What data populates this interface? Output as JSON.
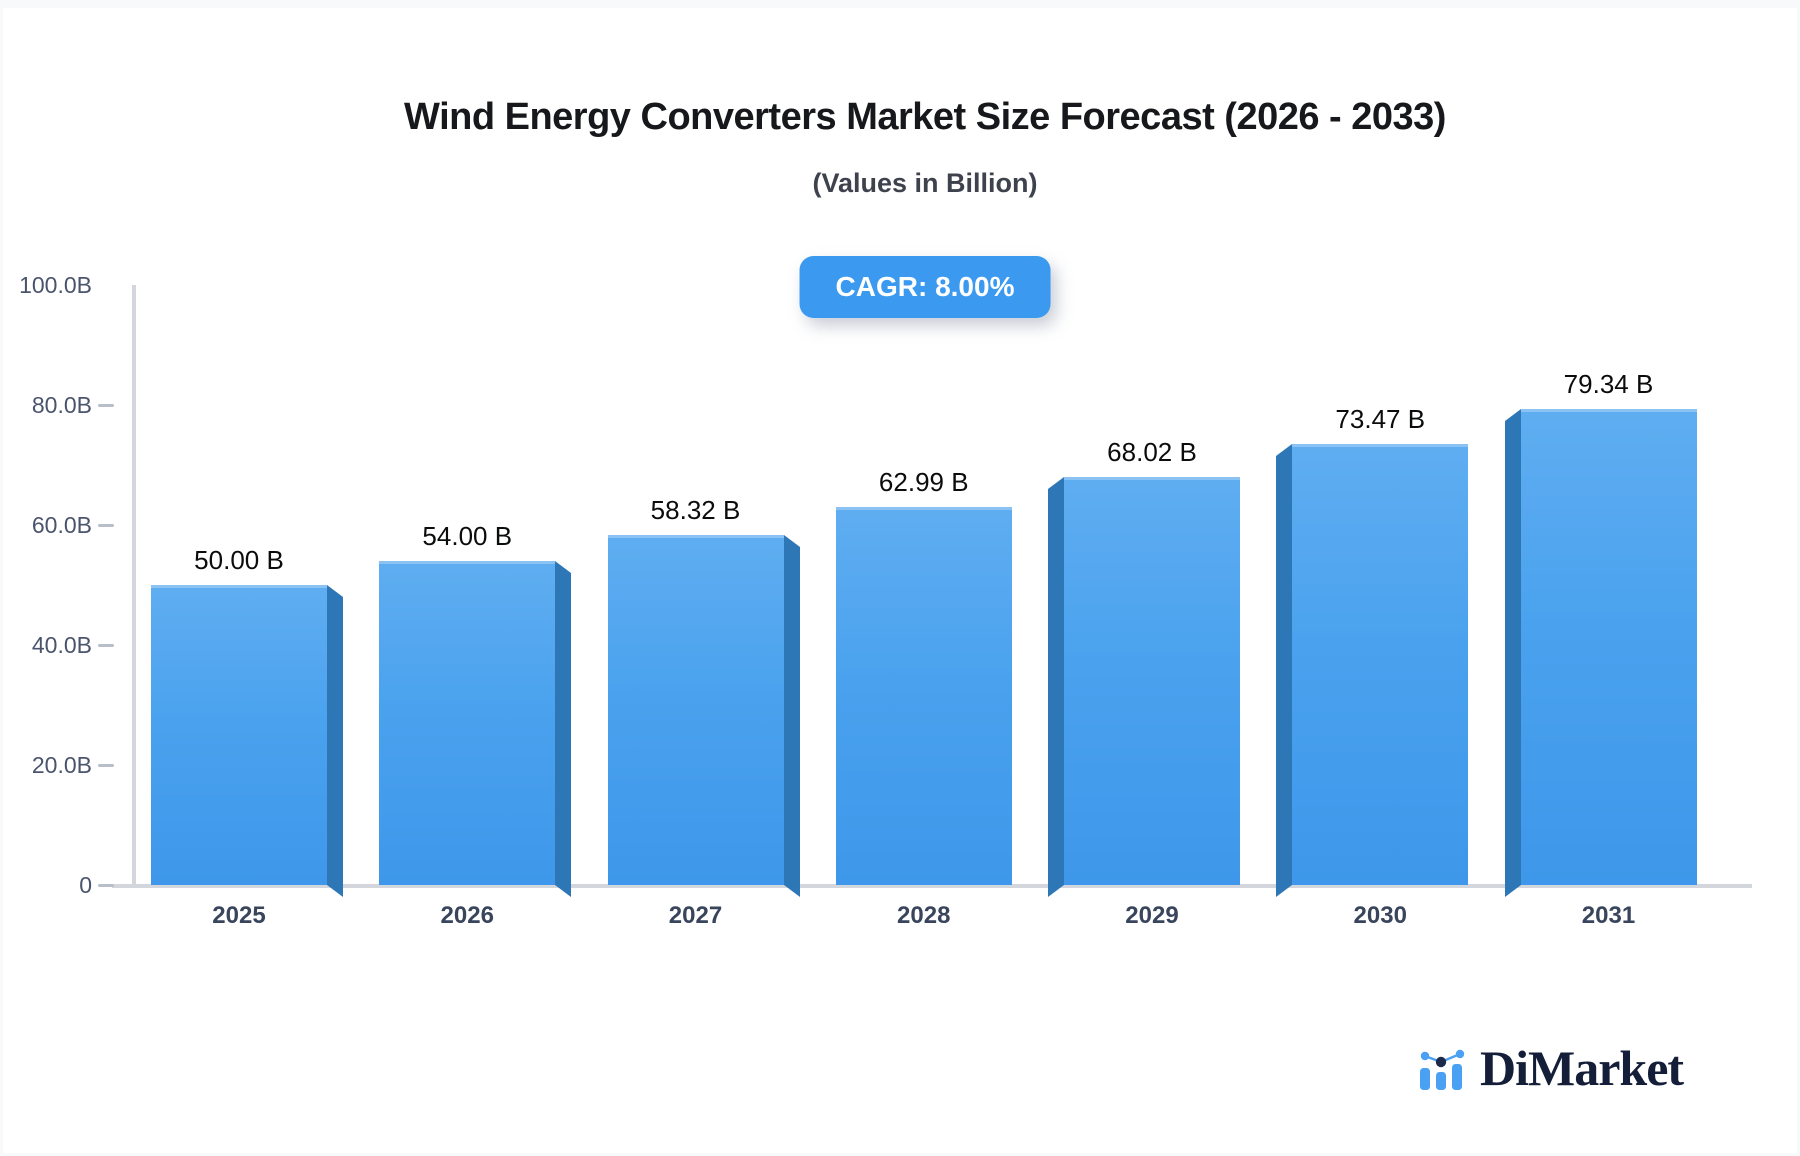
{
  "title": "Wind Energy Converters Market Size Forecast (2026 - 2033)",
  "subtitle": "(Values in Billion)",
  "badge": {
    "label": "CAGR: 8.00%"
  },
  "brand": {
    "name": "DiMarket"
  },
  "colors": {
    "bar_body_top": "#5fadf1",
    "bar_body_bottom": "#3e97ea",
    "bar_highlight": "#8ac2f4",
    "bar_side_face": "#2e77b6",
    "badge_bg": "#3b9af0",
    "axis_line": "#d3d7dd",
    "y_label": "#4a546c",
    "x_label": "#39455c",
    "value_label": "#0b0c0d",
    "logo_blue": "#4aa0f2",
    "logo_navy": "#151e38"
  },
  "chart_data": {
    "type": "bar",
    "title": "Wind Energy Converters Market Size Forecast (2026 - 2033)",
    "subtitle": "(Values in Billion)",
    "xlabel": "",
    "ylabel": "",
    "unit": "Billion",
    "categories": [
      "2025",
      "2026",
      "2027",
      "2028",
      "2029",
      "2030",
      "2031"
    ],
    "values": [
      50.0,
      54.0,
      58.32,
      62.99,
      68.02,
      73.47,
      79.34
    ],
    "value_labels": [
      "50.00 B",
      "54.00 B",
      "58.32 B",
      "62.99 B",
      "68.02 B",
      "73.47 B",
      "79.34 B"
    ],
    "ylim": [
      0,
      100
    ],
    "yticks": [
      {
        "label": "100.0B",
        "value": 100
      },
      {
        "label": "80.0B",
        "value": 80
      },
      {
        "label": "60.0B",
        "value": 60
      },
      {
        "label": "40.0B",
        "value": 40
      },
      {
        "label": "20.0B",
        "value": 20
      },
      {
        "label": "0",
        "value": 0
      }
    ],
    "grid": false,
    "legend": "none",
    "cagr": "8.00%"
  }
}
